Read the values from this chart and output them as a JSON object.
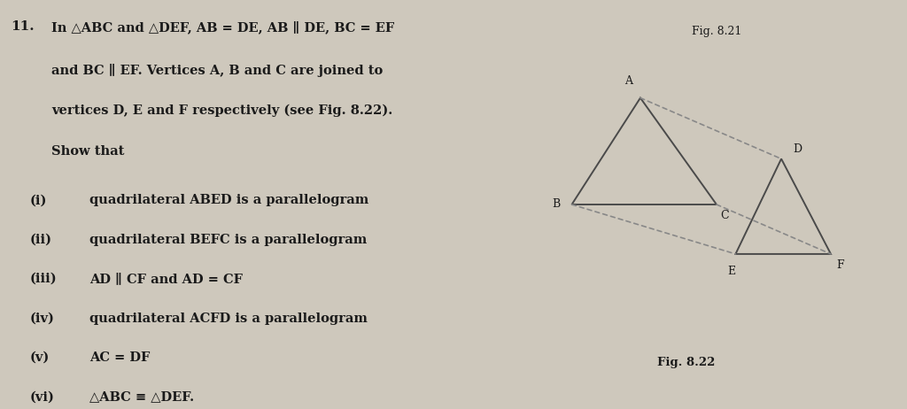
{
  "background_color": "#cec8bc",
  "fig_width": 10.24,
  "fig_height": 4.62,
  "fig_label": "Fig. 8.21",
  "fig_label2": "Fig. 8.22",
  "triangle_ABC": {
    "A": [
      0.3,
      0.78
    ],
    "B": [
      0.12,
      0.5
    ],
    "C": [
      0.5,
      0.5
    ]
  },
  "triangle_DEF": {
    "D": [
      0.67,
      0.62
    ],
    "E": [
      0.55,
      0.37
    ],
    "F": [
      0.8,
      0.37
    ]
  },
  "line_color": "#4a4a4a",
  "dashed_color": "#888888",
  "label_fontsize": 9,
  "text_color": "#1a1a1a"
}
